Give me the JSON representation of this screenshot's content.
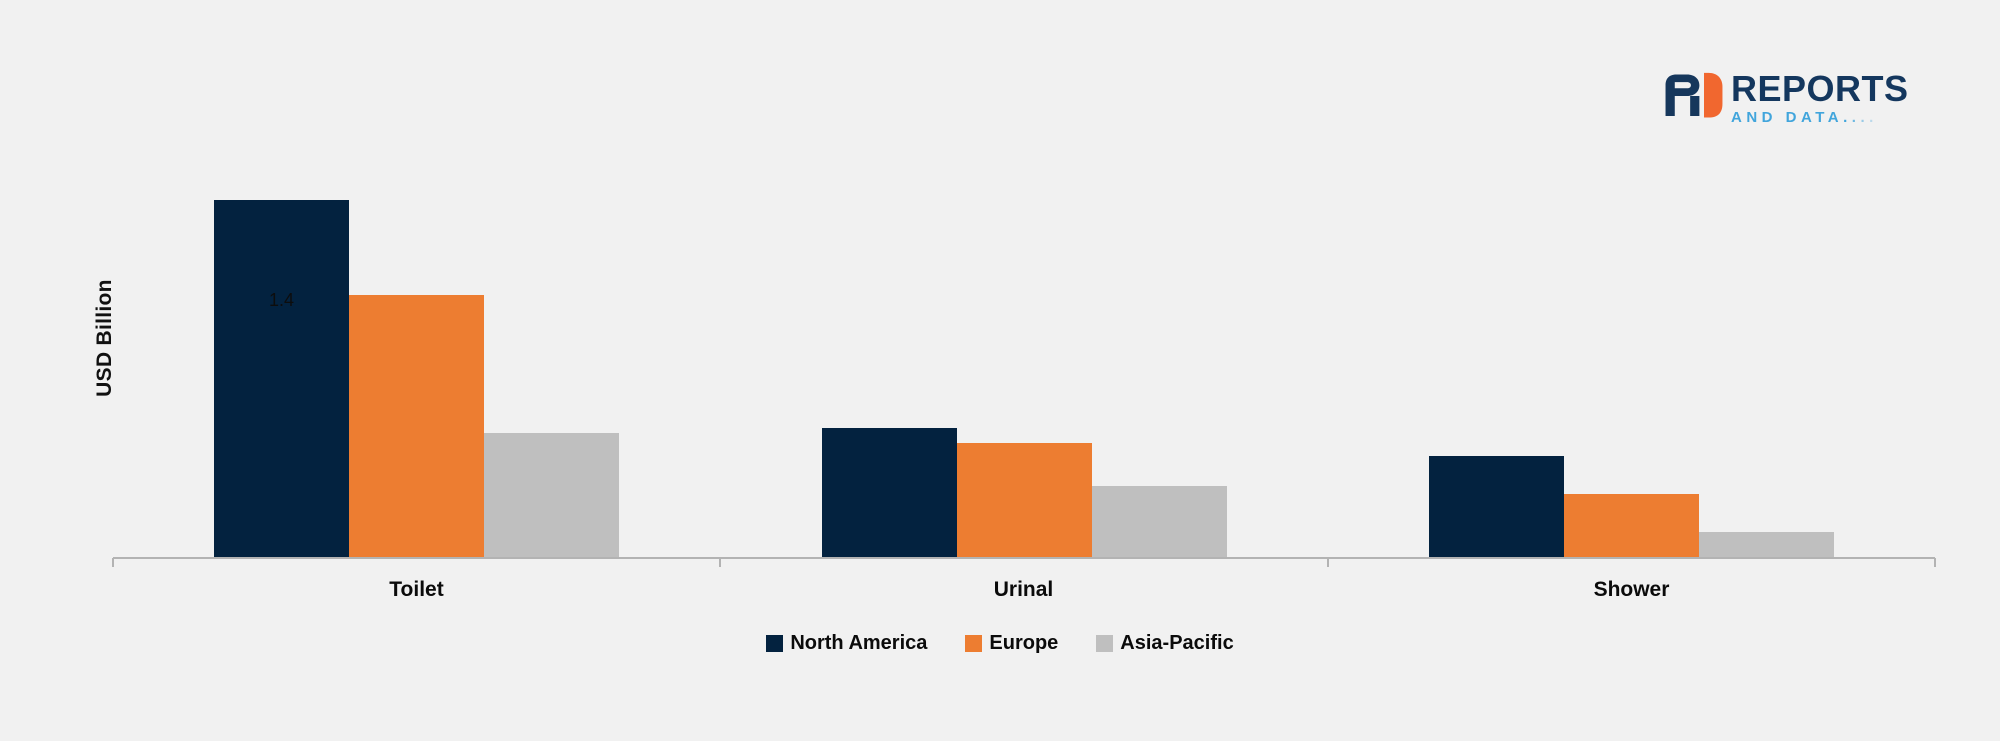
{
  "page": {
    "background": "#f1f1f1"
  },
  "logo": {
    "monogram": "RD",
    "title": "REPORTS",
    "subtitle": "AND DATA",
    "dots": "....",
    "navy": "#16375c",
    "orange": "#f1672f",
    "blue": "#41a5dc"
  },
  "chart_data": {
    "type": "bar",
    "title": "",
    "xlabel": "",
    "ylabel": "USD Billion",
    "categories": [
      "Toilet",
      "Urinal",
      "Shower"
    ],
    "series": [
      {
        "name": "North America",
        "color": "#03223f",
        "values": [
          1.4,
          0.51,
          0.4
        ]
      },
      {
        "name": "Europe",
        "color": "#ed7d31",
        "values": [
          1.03,
          0.45,
          0.25
        ]
      },
      {
        "name": "Asia-Pacific",
        "color": "#bfbfbf",
        "values": [
          0.49,
          0.28,
          0.1
        ]
      }
    ],
    "bar_labels": [
      {
        "category": "Toilet",
        "series": "North America",
        "text": "1.4"
      }
    ],
    "ylim": [
      0,
      1.77
    ],
    "grid": false,
    "legend_position": "bottom",
    "axis_color": "#b3b3b3",
    "background": "#f1f1f1"
  }
}
